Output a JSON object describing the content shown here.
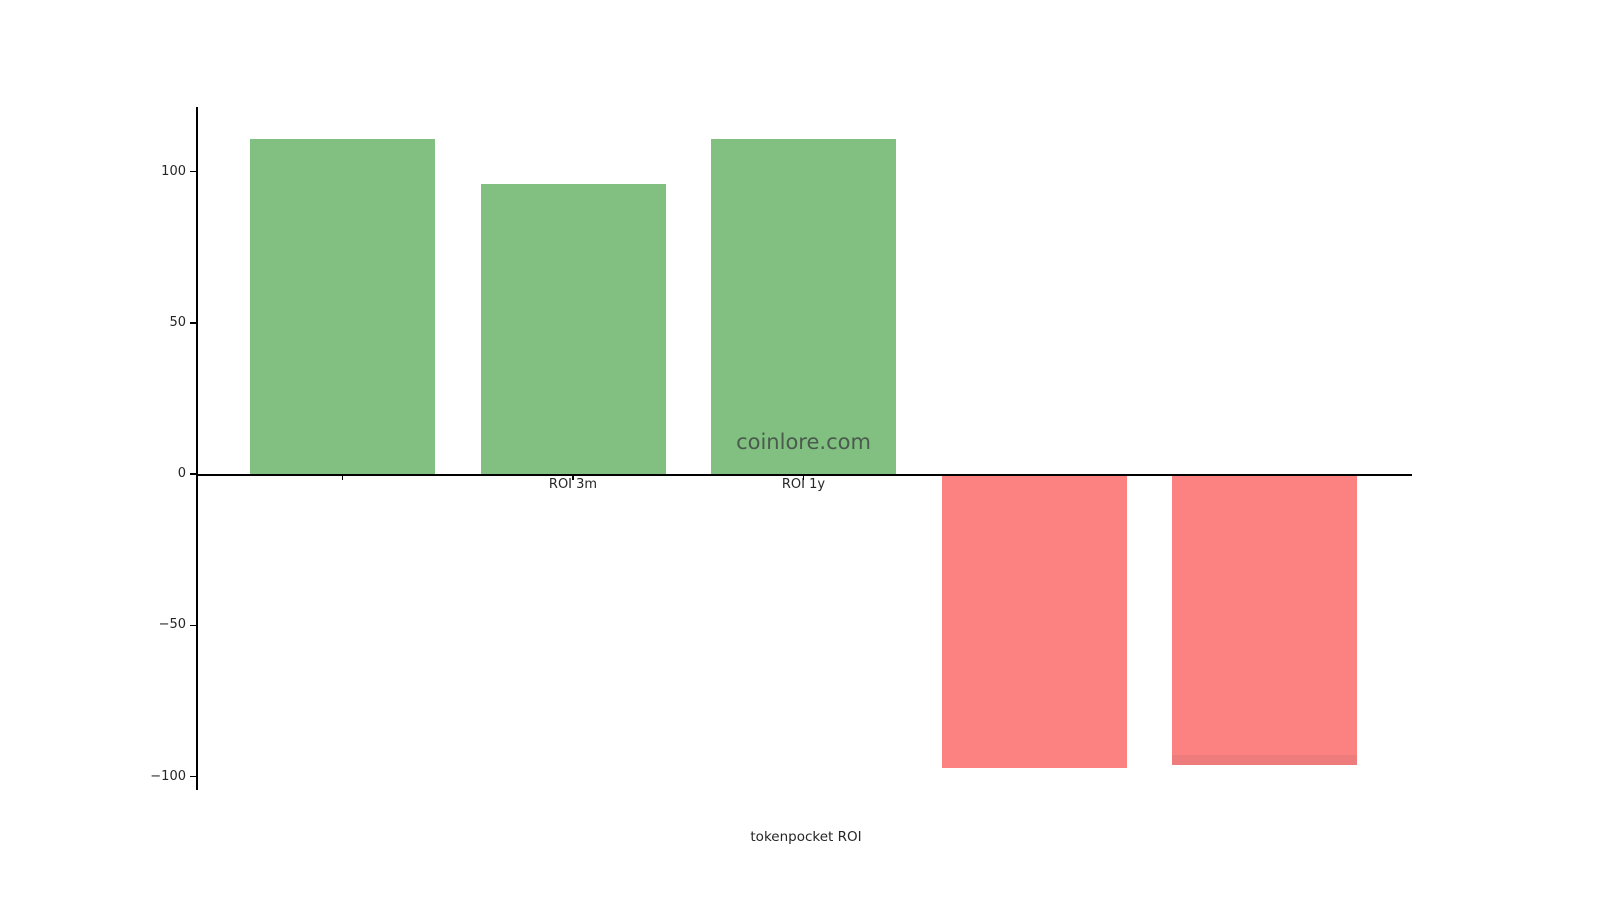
{
  "chart_data": {
    "type": "bar",
    "title": "tokenpocket ROI",
    "title_position": "bottom",
    "watermark": "coinlore.com",
    "xlabel": "",
    "ylabel": "",
    "ylim": [
      -104.5,
      121.3
    ],
    "yticks": [
      100,
      50,
      0,
      -50,
      -100
    ],
    "grid": false,
    "legend": "none",
    "categories": [
      "",
      "ROI 3m",
      "ROI 1y",
      "",
      ""
    ],
    "values": [
      110.7,
      95.9,
      110.7,
      -97.2,
      -96.2
    ],
    "bars": [
      {
        "label": "",
        "value": 110.7,
        "color_key": "positive",
        "tick_visible": true
      },
      {
        "label": "ROI 3m",
        "value": 95.9,
        "color_key": "positive",
        "tick_visible": true
      },
      {
        "label": "ROI 1y",
        "value": 110.7,
        "color_key": "positive",
        "tick_visible": true
      },
      {
        "label": "",
        "value": -97.2,
        "color_key": "negative",
        "tick_visible": false
      },
      {
        "label": "",
        "value": -96.2,
        "color_key": "negative_dark",
        "tick_visible": false,
        "overlay_value": -92.9,
        "overlay_color_key": "negative"
      }
    ],
    "colors": {
      "positive": "#81c081",
      "negative": "#fc8181",
      "negative_dark": "#ef7c7c",
      "axis": "#000000",
      "tick_label": "#262626",
      "title": "#262626",
      "watermark": "#4a5a4d",
      "background": "#ffffff"
    }
  }
}
